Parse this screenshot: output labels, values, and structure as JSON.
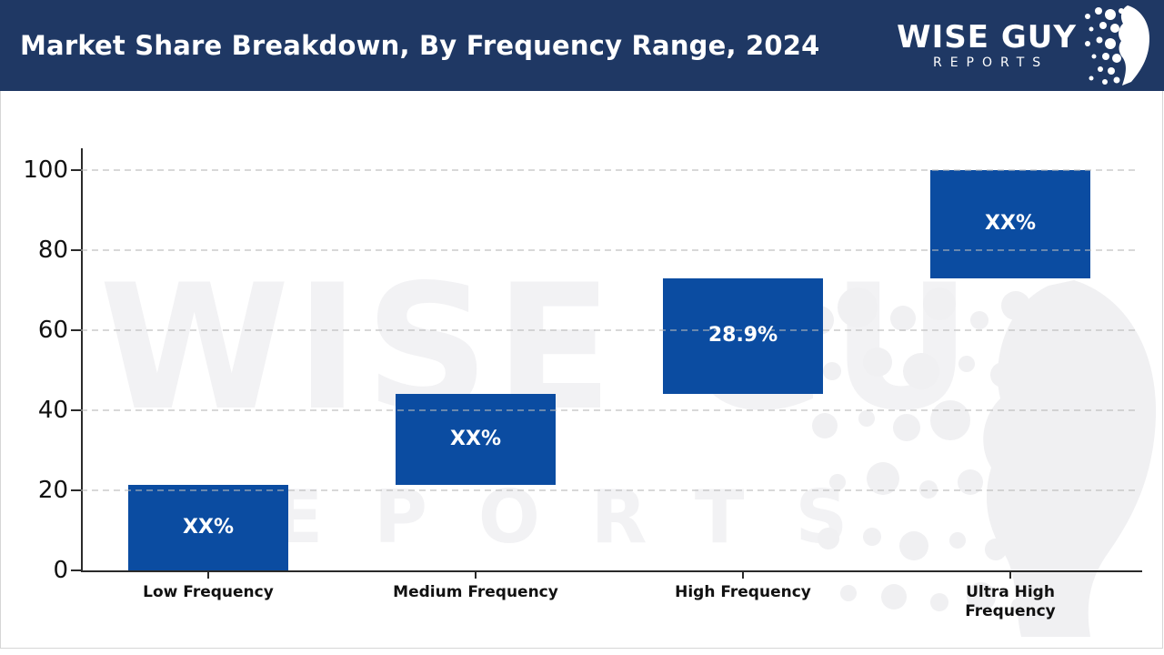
{
  "header": {
    "title": "Market Share Breakdown, By Frequency Range, 2024",
    "logo": {
      "line1": "WISE GUY",
      "line2": "REPORTS"
    }
  },
  "watermark": {
    "line1": "WISE GU",
    "line2": "REPORTS"
  },
  "chart_data": {
    "type": "bar",
    "subtype": "waterfall-floating-bars",
    "title": "Market Share Breakdown, By Frequency Range, 2024",
    "categories": [
      "Low Frequency",
      "Medium Frequency",
      "High Frequency",
      "Ultra High Frequency"
    ],
    "segments": [
      {
        "category": "Low Frequency",
        "display": "Low Frequency",
        "start": 0,
        "end": 21.4,
        "value": 21.4,
        "label": "XX%"
      },
      {
        "category": "Medium Frequency",
        "display": "Medium Frequency",
        "start": 21.4,
        "end": 44.1,
        "value": 22.7,
        "label": "XX%"
      },
      {
        "category": "High Frequency",
        "display": "High Frequency",
        "start": 44.1,
        "end": 73.0,
        "value": 28.9,
        "label": "28.9%"
      },
      {
        "category": "Ultra High Frequency",
        "display": "Ultra High\nFrequency",
        "start": 73.0,
        "end": 100,
        "value": 27.0,
        "label": "XX%"
      }
    ],
    "y_ticks": [
      0,
      20,
      40,
      60,
      80,
      100
    ],
    "ylim": [
      0,
      100
    ],
    "xlabel": "",
    "ylabel": "",
    "grid": "horizontal-dashed",
    "legend": "none",
    "bar_color": "#0b4ca1",
    "bar_label_color": "#ffffff",
    "header_color": "#1f3864"
  }
}
